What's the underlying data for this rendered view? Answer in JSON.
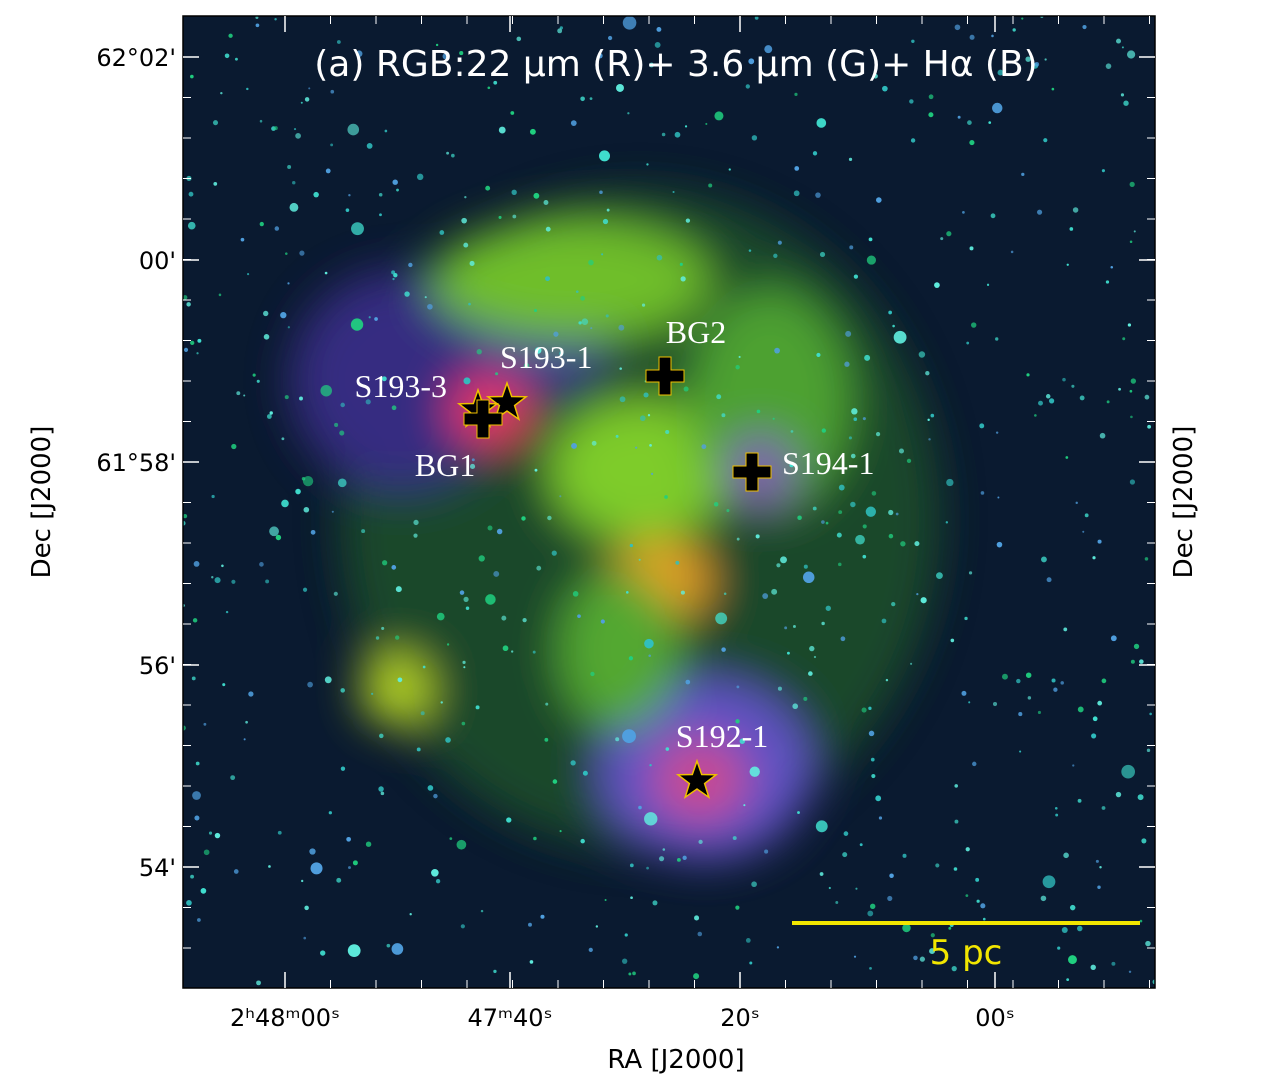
{
  "figure": {
    "title": "(a) RGB:22 μm (R)+ 3.6 μm (G)+ Hα (B)",
    "x_axis_label": "RA [J2000]",
    "y_axis_label": "Dec [J2000]",
    "x_tick_labels": [
      "2ʰ48ᵐ00ˢ",
      "47ᵐ40ˢ",
      "20ˢ",
      "00ˢ"
    ],
    "y_tick_labels": [
      "62°02'",
      "00'",
      "61°58'",
      "56'",
      "54'"
    ],
    "sources": [
      {
        "label": "S193-1",
        "marker": "star"
      },
      {
        "label": "S193-3",
        "marker": "star"
      },
      {
        "label": "BG1",
        "marker": "cross"
      },
      {
        "label": "BG2",
        "marker": "cross"
      },
      {
        "label": "S194-1",
        "marker": "cross"
      },
      {
        "label": "S192-1",
        "marker": "star"
      }
    ],
    "scale_bar_label": "5 pc"
  }
}
